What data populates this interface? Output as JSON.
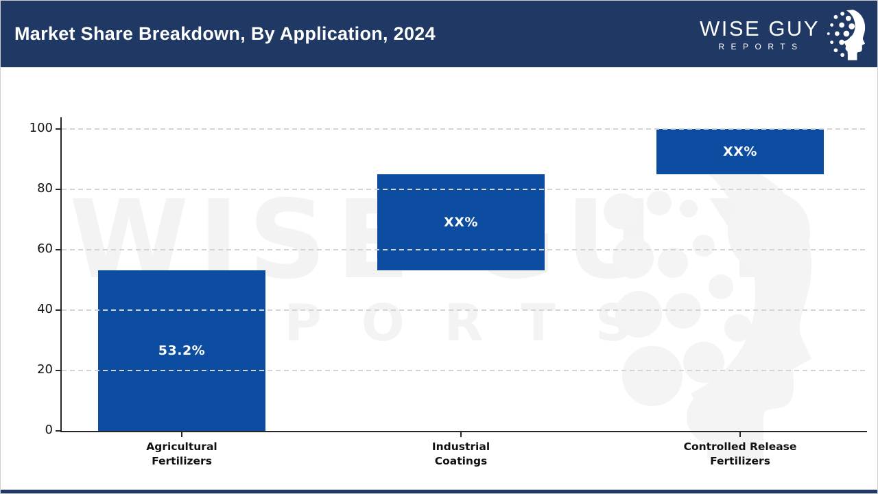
{
  "header": {
    "title": "Market Share Breakdown, By Application, 2024",
    "logo": {
      "line1": "WISE GUY",
      "line2": "REPORTS"
    }
  },
  "watermark": {
    "line1": "WISE GU Y",
    "line2": "REPORTS"
  },
  "chart_data": {
    "type": "bar",
    "variant": "floating-stacked-percentage",
    "title": "Market Share Breakdown, By Application, 2024",
    "categories": [
      {
        "lines": [
          "Agricultural",
          "Fertilizers"
        ]
      },
      {
        "lines": [
          "Industrial",
          "Coatings"
        ]
      },
      {
        "lines": [
          "Controlled Release",
          "Fertilizers"
        ]
      }
    ],
    "segments": [
      {
        "category": "Agricultural Fertilizers",
        "start": 0,
        "end": 53.2,
        "label": "53.2%"
      },
      {
        "category": "Industrial Coatings",
        "start": 53.2,
        "end": 85,
        "label": "XX%"
      },
      {
        "category": "Controlled Release Fertilizers",
        "start": 85,
        "end": 100,
        "label": "XX%"
      }
    ],
    "ylim": [
      0,
      100
    ],
    "yticks": [
      0,
      20,
      40,
      60,
      80,
      100
    ],
    "grid": "horizontal-dashed",
    "legend": "none",
    "bar_color": "#0d4da1",
    "bar_label_color": "#ffffff"
  },
  "colors": {
    "header_bg": "#1f3864",
    "footer_bg": "#1f3864",
    "axis": "#262626",
    "gridline": "#d4d4d4",
    "watermark": "#f3f3f3"
  }
}
